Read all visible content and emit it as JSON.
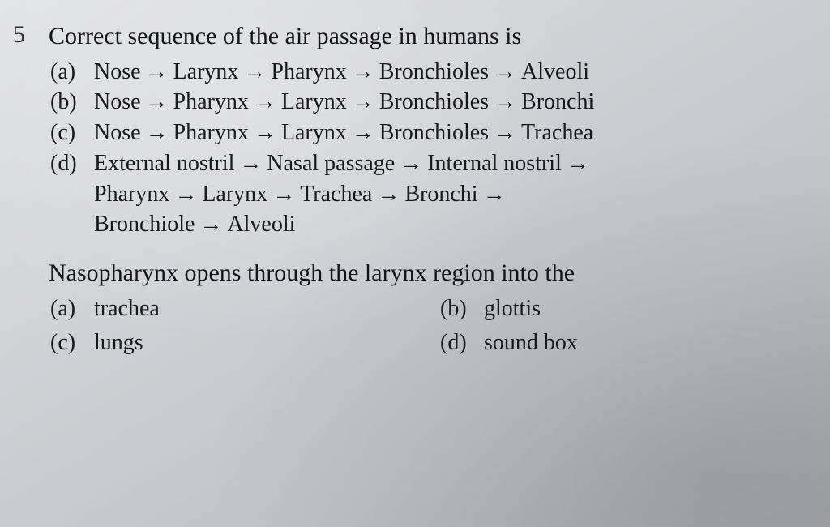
{
  "q1": {
    "number": "5",
    "stem": "Correct sequence of the air passage in humans is",
    "options": {
      "a": {
        "letter": "(a)",
        "parts": [
          "Nose",
          "Larynx",
          "Pharynx",
          "Bronchioles",
          "Alveoli"
        ]
      },
      "b": {
        "letter": "(b)",
        "parts": [
          "Nose",
          "Pharynx",
          "Larynx",
          "Bronchioles",
          "Bronchi"
        ]
      },
      "c": {
        "letter": "(c)",
        "parts": [
          "Nose",
          "Pharynx",
          "Larynx",
          "Bronchioles",
          "Trachea"
        ]
      },
      "d": {
        "letter": "(d)",
        "line1_parts": [
          "External nostril",
          "Nasal passage",
          "Internal nostril"
        ],
        "line2_parts": [
          "Pharynx",
          "Larynx",
          "Trachea",
          "Bronchi"
        ],
        "line3_parts": [
          "Bronchiole",
          "Alveoli"
        ]
      }
    }
  },
  "q2": {
    "number": "",
    "stem": "Nasopharynx opens through the larynx region into the",
    "options": {
      "a": {
        "letter": "(a)",
        "text": "trachea"
      },
      "b": {
        "letter": "(b)",
        "text": "glottis"
      },
      "c": {
        "letter": "(c)",
        "text": "lungs"
      },
      "d": {
        "letter": "(d)",
        "text": "sound box"
      }
    }
  },
  "glyphs": {
    "arrow": "→"
  },
  "style": {
    "text_color": "#14141a",
    "bg_gradient_from": "#e2e3e5",
    "bg_gradient_to": "#a8aab2",
    "font_family": "Times New Roman",
    "stem_fontsize_pt": 22,
    "option_fontsize_pt": 21
  }
}
